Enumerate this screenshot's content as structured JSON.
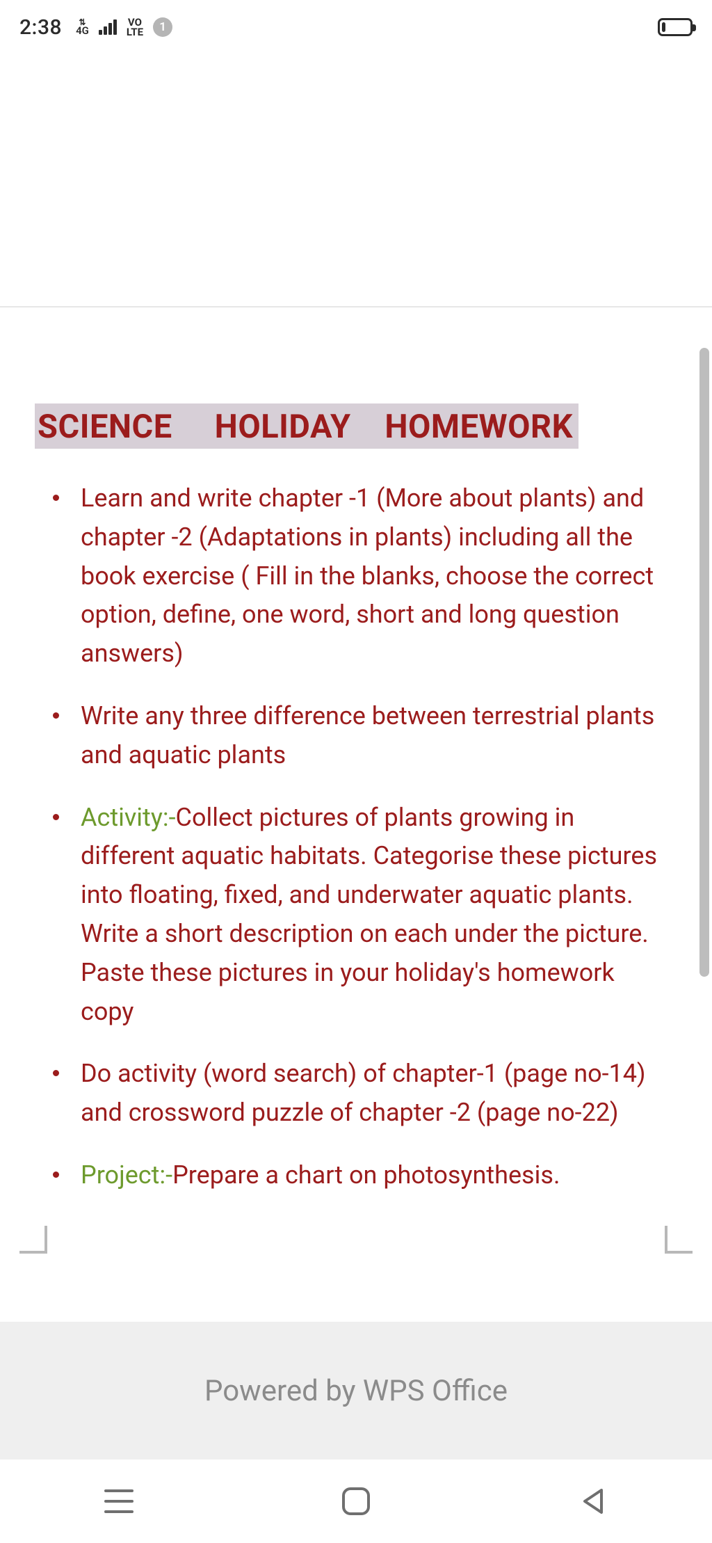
{
  "status": {
    "time": "2:38",
    "net_label": "4G",
    "volte_top": "VO",
    "volte_bottom": "LTE",
    "noti_count": "1",
    "battery_pct": 12
  },
  "scroll": {
    "thumb_top_pct": 0,
    "thumb_height_pct": 62
  },
  "document": {
    "title": "SCIENCE     HOLIDAY    HOMEWORK",
    "text_color": "#9b1c1c",
    "keyword_color": "#6d9a2d",
    "title_bg": "#d7cfd7",
    "items": [
      {
        "prefix": "",
        "text": "Learn and write chapter -1 (More about plants) and chapter -2 (Adaptations in plants) including all the book exercise ( Fill in the blanks, choose the correct option, define, one word, short and long question answers)"
      },
      {
        "prefix": "",
        "text": "Write any three difference between terrestrial plants and aquatic plants"
      },
      {
        "prefix": "Activity:-",
        "text": "Collect pictures of plants growing in different aquatic habitats. Categorise these pictures into floating, fixed, and  underwater aquatic plants. Write a short description on each under the picture. Paste these pictures in your holiday's homework copy"
      },
      {
        "prefix": "",
        "text": "Do activity (word search) of chapter-1 (page no-14) and crossword puzzle of chapter -2 (page no-22)"
      },
      {
        "prefix": "Project:-",
        "text": "Prepare a chart on photosynthesis."
      }
    ]
  },
  "footer": {
    "powered": "Powered by WPS Office"
  }
}
